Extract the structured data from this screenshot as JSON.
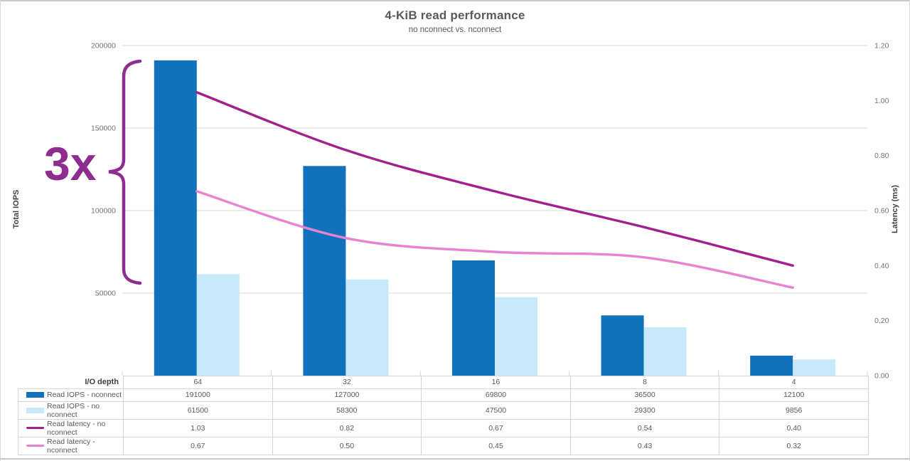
{
  "chart_data": {
    "type": "combo-bar-line",
    "title": "4-KiB read performance",
    "subtitle": "no nconnect vs. nconnect",
    "categories": [
      "64",
      "32",
      "16",
      "8",
      "4"
    ],
    "x_axis_label": "I/O depth",
    "left_axis": {
      "label": "Total IOPS",
      "min": 0,
      "max": 200000,
      "tick_step": 50000,
      "ticks": [
        "200000",
        "150000",
        "100000",
        "50000"
      ]
    },
    "right_axis": {
      "label": "Latency (ms)",
      "min": 0,
      "max": 1.2,
      "tick_step": 0.2,
      "ticks": [
        "1.20",
        "1.00",
        "0.80",
        "0.60",
        "0.40",
        "0.20",
        "0.00"
      ]
    },
    "grid": "horizontal-only",
    "legend_position": "table-below-chart",
    "series": [
      {
        "name": "Read IOPS - nconnect",
        "type": "bar",
        "axis": "left",
        "color": "#1072bc",
        "values": [
          191000,
          127000,
          69800,
          36500,
          12100
        ]
      },
      {
        "name": "Read IOPS - no nconnect",
        "type": "bar",
        "axis": "left",
        "color": "#c7e9fa",
        "values": [
          61500,
          58300,
          47500,
          29300,
          9856
        ]
      },
      {
        "name": "Read latency - no nconnect",
        "type": "line",
        "axis": "right",
        "color": "#a1208d",
        "values": [
          1.03,
          0.82,
          0.67,
          0.54,
          0.4
        ]
      },
      {
        "name": "Read latency - nconnect",
        "type": "line",
        "axis": "right",
        "color": "#e982d0",
        "values": [
          0.67,
          0.5,
          0.45,
          0.43,
          0.32
        ]
      }
    ],
    "annotation": {
      "text": "3x",
      "color": "#8e2c90"
    }
  },
  "table": {
    "header_label": "I/O depth",
    "columns": [
      "64",
      "32",
      "16",
      "8",
      "4"
    ],
    "rows": [
      {
        "label": "Read IOPS - nconnect",
        "swatch": "bar",
        "color": "#1072bc",
        "values": [
          "191000",
          "127000",
          "69800",
          "36500",
          "12100"
        ]
      },
      {
        "label": "Read IOPS - no nconnect",
        "swatch": "bar",
        "color": "#c7e9fa",
        "values": [
          "61500",
          "58300",
          "47500",
          "29300",
          "9856"
        ]
      },
      {
        "label": "Read latency - no nconnect",
        "swatch": "line",
        "color": "#a1208d",
        "values": [
          "1.03",
          "0.82",
          "0.67",
          "0.54",
          "0.40"
        ]
      },
      {
        "label": "Read latency - nconnect",
        "swatch": "line",
        "color": "#e982d0",
        "values": [
          "0.67",
          "0.50",
          "0.45",
          "0.43",
          "0.32"
        ]
      }
    ]
  }
}
